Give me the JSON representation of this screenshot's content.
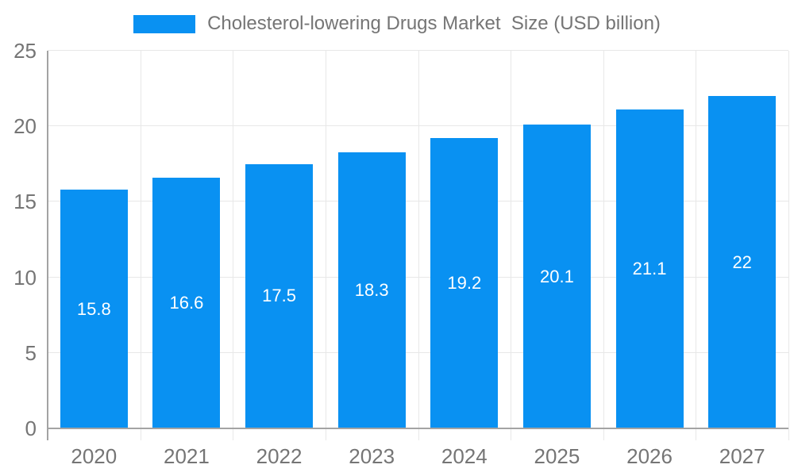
{
  "legend": {
    "label": "Cholesterol-lowering Drugs Market  Size (USD billion)",
    "swatch_color": "#0991f2"
  },
  "colors": {
    "bar": "#0991f2",
    "grid": "#e8e8e8",
    "axis": "#a3a3a3",
    "tick_text": "#757575",
    "bar_label_text": "#ffffff",
    "background": "#ffffff"
  },
  "chart_data": {
    "type": "bar",
    "title": "Cholesterol-lowering Drugs Market  Size (USD billion)",
    "categories": [
      "2020",
      "2021",
      "2022",
      "2023",
      "2024",
      "2025",
      "2026",
      "2027"
    ],
    "values": [
      15.8,
      16.6,
      17.5,
      18.3,
      19.2,
      20.1,
      21.1,
      22
    ],
    "value_labels": [
      "15.8",
      "16.6",
      "17.5",
      "18.3",
      "19.2",
      "20.1",
      "21.1",
      "22"
    ],
    "xlabel": "",
    "ylabel": "",
    "ylim": [
      0,
      25
    ],
    "yticks": [
      0,
      5,
      10,
      15,
      20,
      25
    ],
    "grid": true,
    "legend_position": "top"
  }
}
